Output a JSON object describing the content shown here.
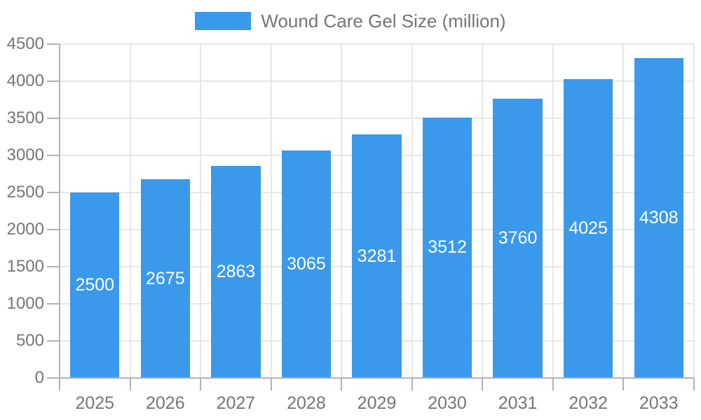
{
  "legend": {
    "label": "Wound Care Gel Size (million)"
  },
  "colors": {
    "bar": "#3B99EC",
    "axis": "#b3b3b3",
    "grid": "#e7e7e7",
    "tick_text": "#757575",
    "value_text": "#ffffff",
    "background": "#ffffff"
  },
  "chart_data": {
    "type": "bar",
    "title": "Wound Care Gel Size (million)",
    "categories": [
      "2025",
      "2026",
      "2027",
      "2028",
      "2029",
      "2030",
      "2031",
      "2032",
      "2033"
    ],
    "values": [
      2500,
      2675,
      2863,
      3065,
      3281,
      3512,
      3760,
      4025,
      4308
    ],
    "xlabel": "",
    "ylabel": "",
    "ylim": [
      0,
      4500
    ],
    "ytick_step": 500,
    "ytick_labels": [
      "0",
      "500",
      "1000",
      "1500",
      "2000",
      "2500",
      "3000",
      "3500",
      "4000",
      "4500"
    ],
    "grid": true,
    "legend_position": "top",
    "value_label_position": "inside-center",
    "bar_width_fraction": 0.7
  }
}
